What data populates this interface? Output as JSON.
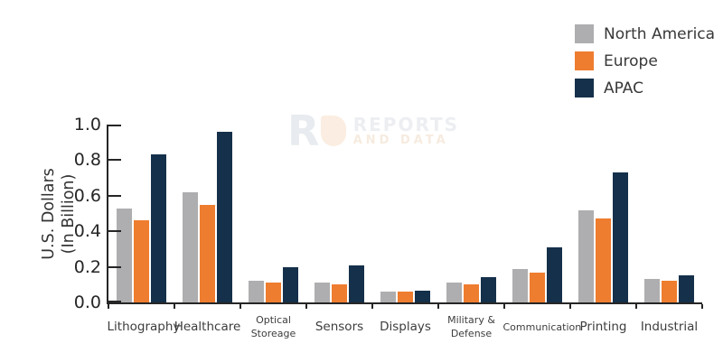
{
  "chart_data": {
    "type": "bar",
    "categories": [
      "Lithography",
      "Healthcare",
      "Optical Storeage",
      "Sensors",
      "Displays",
      "Military & Defense",
      "Communication",
      "Printing",
      "Industrial"
    ],
    "series": [
      {
        "name": "North America",
        "color": "#aeaeb0",
        "values": [
          0.53,
          0.62,
          0.12,
          0.11,
          0.06,
          0.11,
          0.19,
          0.52,
          0.13
        ]
      },
      {
        "name": "Europe",
        "color": "#ee7d2f",
        "values": [
          0.46,
          0.55,
          0.11,
          0.1,
          0.06,
          0.1,
          0.17,
          0.47,
          0.12
        ]
      },
      {
        "name": "APAC",
        "color": "#15304a",
        "values": [
          0.83,
          0.96,
          0.2,
          0.21,
          0.065,
          0.14,
          0.31,
          0.73,
          0.15
        ]
      }
    ],
    "ylabel_line1": "U.S. Dollars",
    "ylabel_line2": "(In Billion)",
    "yticks": [
      "0.0",
      "0.2",
      "0.4",
      "0.6",
      "0.8",
      "1.0"
    ],
    "ylim": [
      0,
      1.0
    ],
    "xlabel": "",
    "title": "",
    "grid": false,
    "legend_position": "top-right",
    "axis_color": "#262626"
  },
  "watermark": {
    "letter": "R",
    "text_line1": "REPORTS",
    "text_line2": "AND DATA"
  }
}
